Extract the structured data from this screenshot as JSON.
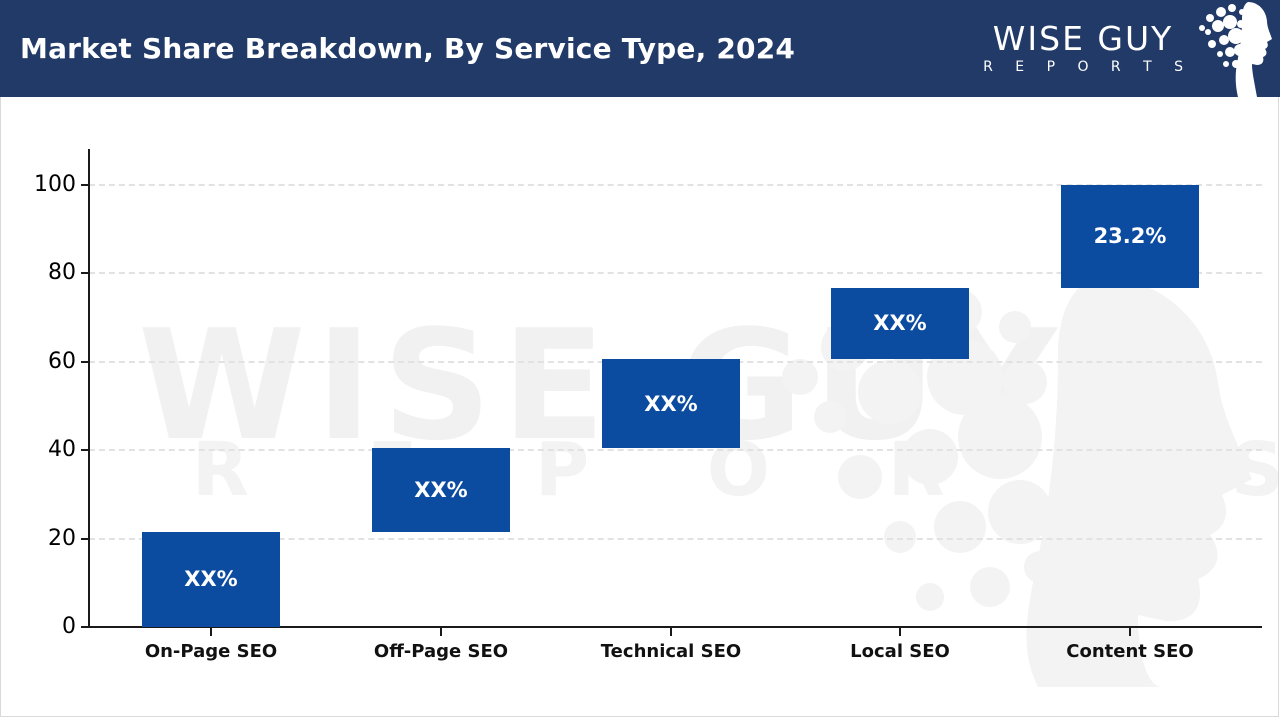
{
  "header": {
    "title": "Market Share Breakdown, By Service Type, 2024",
    "logo": {
      "line1": "WISE GUY",
      "line2": "R E P O R T S"
    }
  },
  "watermark": {
    "line1": "WISE GUY",
    "line2": "R E P O R T S"
  },
  "colors": {
    "header_bg": "#223A67",
    "bar": "#0B4CA1",
    "bar_label": "#ffffff",
    "gridline": "#e2e2e2",
    "axis": "#1a1a1a",
    "watermark": "#f1f1f1"
  },
  "chart_data": {
    "type": "bar",
    "subtype": "waterfall",
    "title": "Market Share Breakdown, By Service Type, 2024",
    "categories": [
      "On-Page SEO",
      "Off-Page SEO",
      "Technical SEO",
      "Local SEO",
      "Content SEO"
    ],
    "series": [
      {
        "name": "Market Share (%)",
        "segments": [
          {
            "category": "On-Page SEO",
            "start": 0,
            "end": 21.5,
            "value_label": "XX%"
          },
          {
            "category": "Off-Page SEO",
            "start": 21.5,
            "end": 40.5,
            "value_label": "XX%"
          },
          {
            "category": "Technical SEO",
            "start": 40.5,
            "end": 60.6,
            "value_label": "XX%"
          },
          {
            "category": "Local SEO",
            "start": 60.6,
            "end": 76.8,
            "value_label": "XX%"
          },
          {
            "category": "Content SEO",
            "start": 76.8,
            "end": 100,
            "value_label": "23.2%"
          }
        ]
      }
    ],
    "xlabel": "",
    "ylabel": "",
    "ylim": [
      0,
      100
    ],
    "yticks": [
      0,
      20,
      40,
      60,
      80,
      100
    ],
    "grid": "horizontal-dashed",
    "legend": "none"
  }
}
